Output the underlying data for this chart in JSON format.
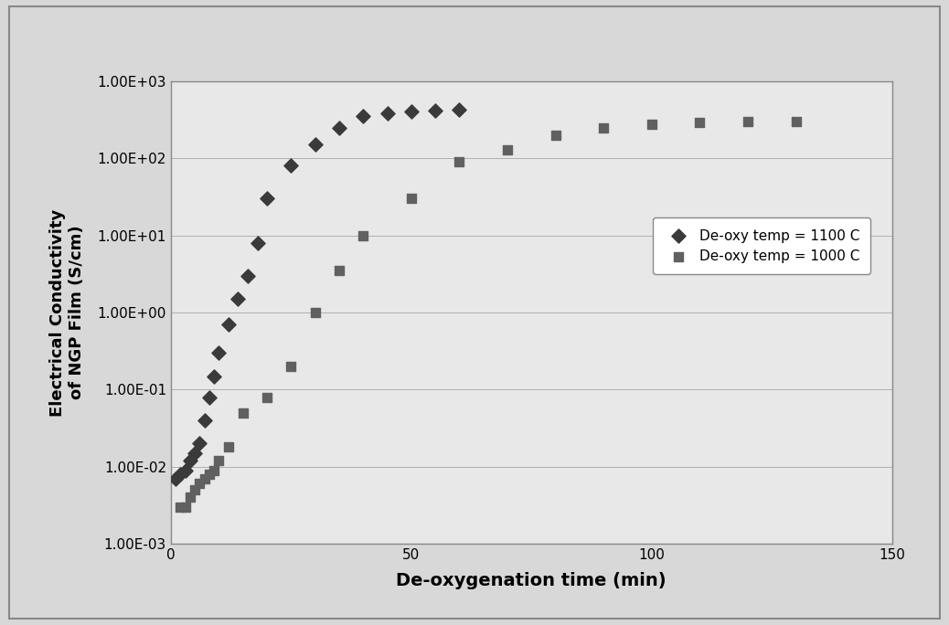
{
  "series_1100": {
    "label": "De-oxy temp = 1100 C",
    "color": "#3a3a3a",
    "marker": "D",
    "x": [
      1,
      2,
      3,
      4,
      5,
      6,
      7,
      8,
      9,
      10,
      12,
      14,
      16,
      18,
      20,
      25,
      30,
      35,
      40,
      45,
      50,
      55,
      60
    ],
    "y": [
      0.007,
      0.008,
      0.009,
      0.012,
      0.015,
      0.02,
      0.04,
      0.08,
      0.15,
      0.3,
      0.7,
      1.5,
      3.0,
      8.0,
      30,
      80,
      150,
      250,
      350,
      380,
      400,
      420,
      430
    ]
  },
  "series_1000": {
    "label": "De-oxy temp = 1000 C",
    "color": "#606060",
    "marker": "s",
    "x": [
      2,
      3,
      4,
      5,
      6,
      7,
      8,
      9,
      10,
      12,
      15,
      20,
      25,
      30,
      35,
      40,
      50,
      60,
      70,
      80,
      90,
      100,
      110,
      120,
      130
    ],
    "y": [
      0.003,
      0.003,
      0.004,
      0.005,
      0.006,
      0.007,
      0.008,
      0.009,
      0.012,
      0.018,
      0.05,
      0.08,
      0.2,
      1.0,
      3.5,
      10,
      30,
      90,
      130,
      200,
      250,
      280,
      295,
      300,
      300
    ]
  },
  "xlabel": "De-oxygenation time (min)",
  "ylabel": "Electrical Conductivity\nof NGP Film (S/cm)",
  "xlim": [
    0,
    150
  ],
  "xticks": [
    0,
    50,
    100,
    150
  ],
  "ytick_labels": [
    "1.00E-03",
    "1.00E-02",
    "1.00E-01",
    "1.00E+00",
    "1.00E+01",
    "1.00E+02",
    "1.00E+03"
  ],
  "ytick_vals": [
    0.001,
    0.01,
    0.1,
    1.0,
    10.0,
    100.0,
    1000.0
  ],
  "background_outer": "#c8c8c8",
  "background_inner": "#e8e8e8",
  "plot_bg": "#e8e8e8",
  "legend_loc": "center right",
  "grid_color": "#b0b0b0",
  "border_color": "#888888"
}
